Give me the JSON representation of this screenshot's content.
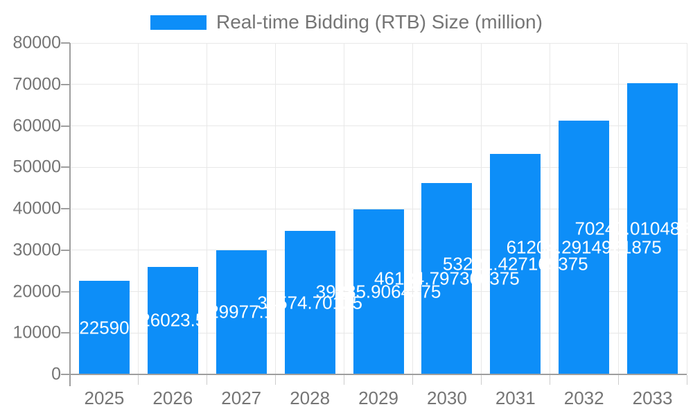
{
  "legend": {
    "label": "Real-time Bidding (RTB) Size (million)",
    "swatch_color": "#0d8ef8"
  },
  "chart_data": {
    "type": "bar",
    "title": "Real-time Bidding (RTB) Size (million)",
    "categories": [
      "2025",
      "2026",
      "2027",
      "2028",
      "2029",
      "2030",
      "2031",
      "2032",
      "2033"
    ],
    "series": [
      {
        "name": "Real-time Bidding (RTB) Size (million)",
        "values": [
          22590,
          26023.5,
          29977.1,
          34574.70125,
          39885.9064375,
          46134.797366375,
          53221.427169375,
          61204.2914921875,
          70247.0104821875
        ]
      }
    ],
    "value_labels": [
      "22590",
      "26023.5",
      "29977.1",
      "34574.70125",
      "39885.9064375",
      "46134.797366375",
      "53221.427169375",
      "61204.2914921875",
      "70247.0104821875"
    ],
    "xlabel": "",
    "ylabel": "",
    "ylim": [
      0,
      80000
    ],
    "ytick_step": 10000,
    "yticks": [
      "0",
      "10000",
      "20000",
      "30000",
      "40000",
      "50000",
      "60000",
      "70000",
      "80000"
    ],
    "grid": true,
    "legend_position": "top-center",
    "bar_color": "#0d8ef8",
    "value_label_color": "#ffffff",
    "axis_text_color": "#757575",
    "axis_line_color": "#9e9e9e",
    "gridline_color": "#e8e8e8"
  }
}
